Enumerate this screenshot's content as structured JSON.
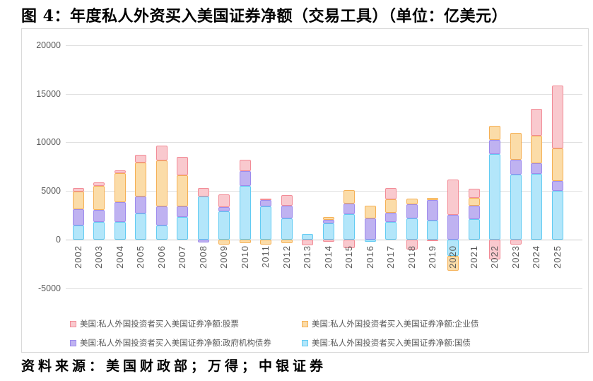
{
  "page": {
    "title": "图 4：年度私人外资买入美国证券净额（交易工具）（单位：亿美元）",
    "source": "资料来源：美国财政部；万得；中银证券"
  },
  "chart_data": {
    "type": "bar",
    "stacked": true,
    "title": "年度私人外资买入美国证券净额（交易工具）",
    "unit": "亿美元",
    "categories": [
      "2002",
      "2003",
      "2004",
      "2005",
      "2006",
      "2007",
      "2008",
      "2009",
      "2010",
      "2011",
      "2012",
      "2013",
      "2014",
      "2015",
      "2016",
      "2017",
      "2018",
      "2019",
      "2020",
      "2021",
      "2022",
      "2023",
      "2024",
      "2025"
    ],
    "series": [
      {
        "id": "equities",
        "name": "美国:私人外国投资者买入美国证券净额:股票",
        "border": "#F28B96",
        "fill": "#F9C9CE",
        "values": [
          400,
          400,
          310,
          830,
          1540,
          1890,
          875,
          1330,
          1180,
          120,
          1065,
          -600,
          -240,
          -850,
          0,
          1120,
          -1000,
          -100,
          3600,
          950,
          -2000,
          -500,
          2750,
          6460
        ]
      },
      {
        "id": "corporate-bonds",
        "name": "美国:私人外国投资者买入美国证券净额:企业债",
        "border": "#F5B055",
        "fill": "#FBDCA8",
        "values": [
          1800,
          2480,
          2950,
          3480,
          4730,
          3190,
          0,
          -500,
          -350,
          -500,
          -350,
          0,
          310,
          1410,
          1310,
          1430,
          590,
          170,
          -1550,
          805,
          1480,
          2750,
          2870,
          3350
        ]
      },
      {
        "id": "agency-bonds",
        "name": "美国:私人外国投资者买入美国证券净额:政府机构债券",
        "border": "#9D8BEC",
        "fill": "#BFB2F1",
        "values": [
          1650,
          1180,
          2010,
          1770,
          1960,
          1070,
          -260,
          450,
          1490,
          710,
          1300,
          0,
          360,
          1080,
          2150,
          950,
          1420,
          2130,
          2560,
          1375,
          1435,
          1555,
          1075,
          1030
        ]
      },
      {
        "id": "treasuries",
        "name": "美国:私人外国投资者买入美国证券净额:国债",
        "border": "#62CBF3",
        "fill": "#B3E6FA",
        "values": [
          1480,
          1840,
          1840,
          2670,
          1420,
          2320,
          4440,
          2900,
          5550,
          3380,
          2200,
          600,
          1670,
          2620,
          -200,
          1790,
          2200,
          1970,
          -1650,
          2085,
          8800,
          6650,
          6770,
          5025
        ]
      }
    ],
    "stack_order_bottom_to_top": [
      "treasuries",
      "agency-bonds",
      "corporate-bonds",
      "equities"
    ],
    "ylim": [
      -5000,
      20000
    ],
    "yticks": [
      20000,
      15000,
      10000,
      5000,
      0,
      -5000
    ],
    "grid": true,
    "legend_position": "bottom",
    "axis_label_color": "#595959",
    "gridline_color": "#E0E0E0"
  }
}
